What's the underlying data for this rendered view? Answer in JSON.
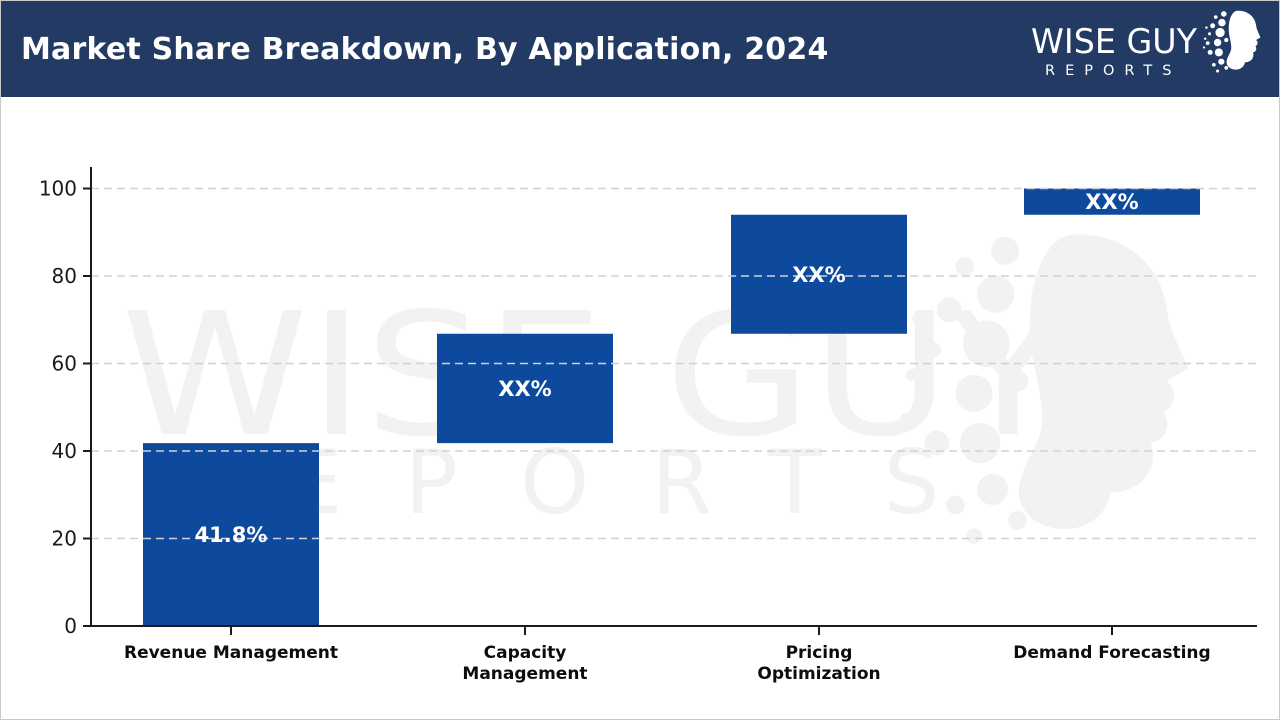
{
  "header": {
    "title": "Market Share Breakdown, By Application, 2024",
    "logo": {
      "line1": "WISE GUY",
      "line2": "REPORTS"
    }
  },
  "watermark": {
    "line1": "WISE GUY",
    "line2": "REPORTS"
  },
  "colors": {
    "header_bg": "#223a64",
    "bar": "#0d4a9e",
    "grid": "#d2d2d2",
    "axis": "#1a1a1a",
    "bar_label": "#ffffff",
    "watermark": "#f2f2f2",
    "page_border": "#c9c9c9"
  },
  "chart_data": {
    "type": "bar",
    "variant": "waterfall",
    "title": "Market Share Breakdown, By Application, 2024",
    "categories": [
      "Revenue Management",
      "Capacity Management",
      "Pricing Optimization",
      "Demand Forecasting"
    ],
    "category_label_lines": [
      [
        "Revenue Management"
      ],
      [
        "Capacity",
        "Management"
      ],
      [
        "Pricing",
        "Optimization"
      ],
      [
        "Demand Forecasting"
      ]
    ],
    "series": [
      {
        "name": "Market Share",
        "segments": [
          {
            "category": "Revenue Management",
            "start": 0,
            "end": 41.8,
            "label": "41.8%"
          },
          {
            "category": "Capacity Management",
            "start": 41.8,
            "end": 66.8,
            "label": "XX%"
          },
          {
            "category": "Pricing Optimization",
            "start": 66.8,
            "end": 94.0,
            "label": "XX%"
          },
          {
            "category": "Demand Forecasting",
            "start": 94.0,
            "end": 100.0,
            "label": "XX%"
          }
        ]
      }
    ],
    "xlabel": "",
    "ylabel": "",
    "yticks": [
      0,
      20,
      40,
      60,
      80,
      100
    ],
    "ylim": [
      0,
      105
    ],
    "grid": {
      "axis": "y",
      "style": "dashed",
      "on_top": true
    },
    "legend": "none"
  }
}
